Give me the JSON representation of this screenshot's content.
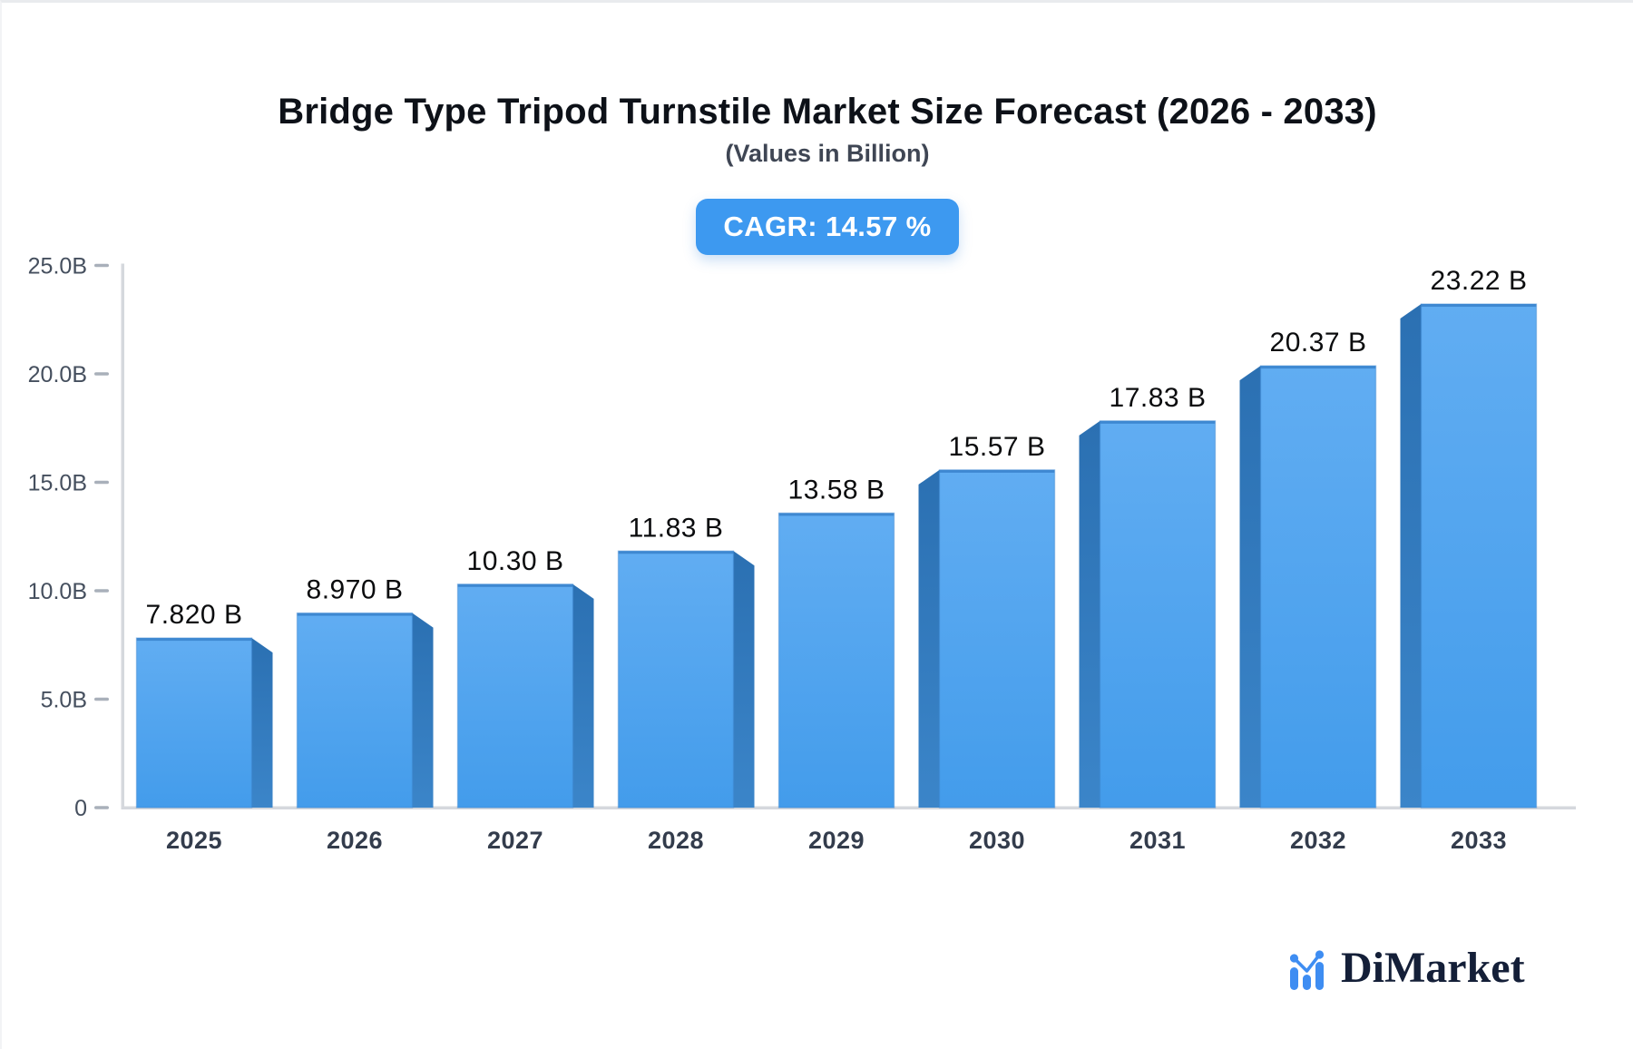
{
  "header": {
    "title": "Bridge Type Tripod Turnstile Market Size Forecast (2026 - 2033)",
    "subtitle": "(Values in Billion)",
    "cagr_label": "CAGR: 14.57 %"
  },
  "chart_data": {
    "type": "bar",
    "title": "Bridge Type Tripod Turnstile Market Size Forecast (2026 - 2033)",
    "subtitle": "(Values in Billion)",
    "unit": "Billion USD",
    "cagr": "14.57 %",
    "categories": [
      "2025",
      "2026",
      "2027",
      "2028",
      "2029",
      "2030",
      "2031",
      "2032",
      "2033"
    ],
    "values": [
      7.82,
      8.97,
      10.3,
      11.83,
      13.58,
      15.57,
      17.83,
      20.37,
      23.22
    ],
    "value_labels": [
      "7.820 B",
      "8.970 B",
      "10.30 B",
      "11.83 B",
      "13.58 B",
      "15.57 B",
      "17.83 B",
      "20.37 B",
      "23.22 B"
    ],
    "ylim": [
      0,
      25
    ],
    "yticks": [
      {
        "value": 0,
        "label": "0"
      },
      {
        "value": 5,
        "label": "5.0B"
      },
      {
        "value": 10,
        "label": "10.0B"
      },
      {
        "value": 15,
        "label": "15.0B"
      },
      {
        "value": 20,
        "label": "20.0B"
      },
      {
        "value": 25,
        "label": "25.0B"
      }
    ],
    "grid": false,
    "legend": false,
    "xlabel": "",
    "ylabel": "",
    "colors": {
      "bar_front_top": "#61adf2",
      "bar_front_bottom": "#439ceb",
      "bar_top_edge": "#3e88d1",
      "bar_side_top": "#2b70b2",
      "bar_side_bottom": "#3b85c9",
      "axis_line": "#d5d8dd",
      "tick_dash": "#a9b0ba",
      "tick_label": "#454f5e",
      "x_label": "#333c4c",
      "value_label": "#0b0c0e",
      "badge_bg": "#3d99f0"
    }
  },
  "branding": {
    "logo_text": "DiMarket",
    "logo_icon": "bar-chart-logo-icon",
    "logo_color": "#3e8df2"
  }
}
